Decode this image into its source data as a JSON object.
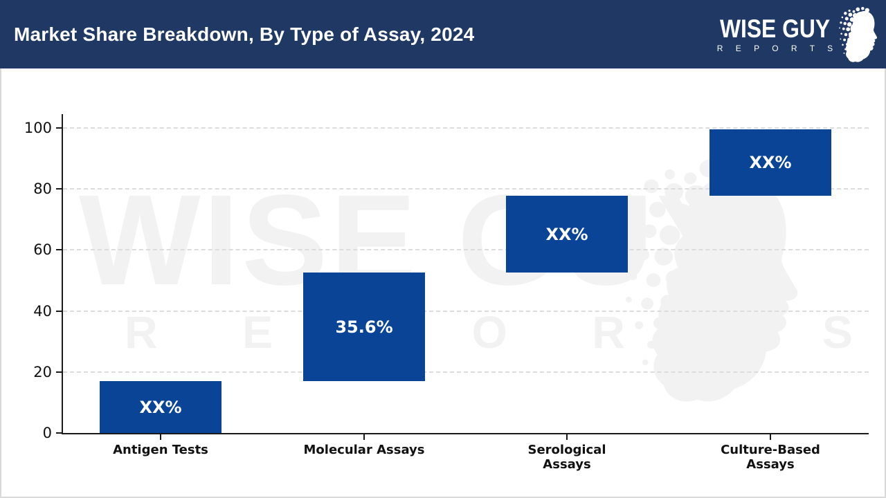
{
  "header": {
    "title": "Market Share Breakdown, By Type of Assay, 2024",
    "logo": {
      "wordmark": "WISE GUY",
      "subtext": "R E P O R T S"
    }
  },
  "watermark": {
    "line1": "WISE GUY",
    "line2": "R E P O R T S"
  },
  "colors": {
    "header_bg": "#1f3864",
    "bar": "#0a4496",
    "grid": "#dcdcdc",
    "axis": "#1a1a1a",
    "bar_label": "#ffffff",
    "frame_border": "#d9d9d9",
    "watermark": "#f2f2f3"
  },
  "chart_data": {
    "type": "bar",
    "subtype": "floating-waterfall",
    "title": "Market Share Breakdown, By Type of Assay, 2024",
    "categories": [
      "Antigen Tests",
      "Molecular Assays",
      "Serological Assays",
      "Culture-Based Assays"
    ],
    "bars": [
      {
        "category": "Antigen Tests",
        "start": 0,
        "end": 17,
        "label": "XX%"
      },
      {
        "category": "Molecular Assays",
        "start": 17,
        "end": 52.6,
        "label": "35.6%"
      },
      {
        "category": "Serological Assays",
        "start": 52.6,
        "end": 77.7,
        "label": "XX%"
      },
      {
        "category": "Culture-Based Assays",
        "start": 77.7,
        "end": 99.5,
        "label": "XX%"
      }
    ],
    "ylim": [
      0,
      100
    ],
    "yticks": [
      0,
      20,
      40,
      60,
      80,
      100
    ],
    "xlabel": "",
    "ylabel": "",
    "grid": "horizontal-dashed",
    "legend": "none"
  }
}
